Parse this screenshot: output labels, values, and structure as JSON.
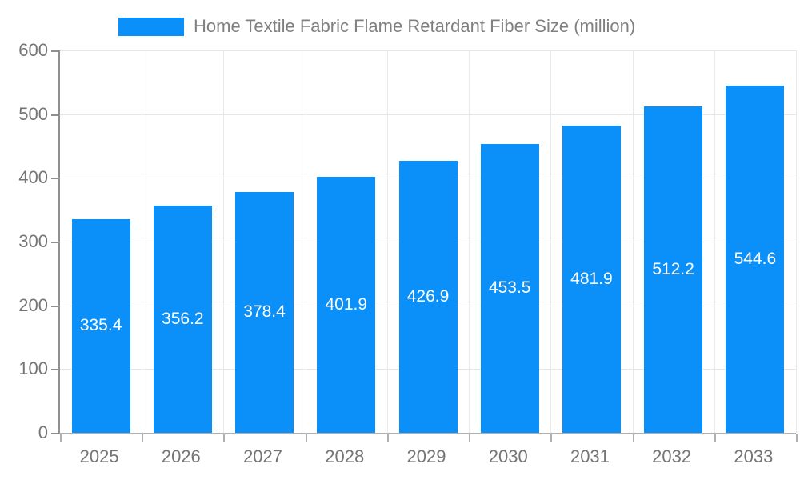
{
  "chart": {
    "legend": {
      "label": "Home Textile Fabric Flame Retardant Fiber Size (million)",
      "position": "top"
    },
    "colors": {
      "bar": "#0b90f9",
      "axis_text": "#757575",
      "legend_text": "#808080",
      "y_axis_line": "#8f8f8f",
      "x_axis_line": "#b0b0b0",
      "gridline": "#e6e6e6",
      "value_label": "#ffffff",
      "background": "#ffffff"
    }
  },
  "chart_data": {
    "type": "bar",
    "title": "Home Textile Fabric Flame Retardant Fiber Size (million)",
    "categories": [
      "2025",
      "2026",
      "2027",
      "2028",
      "2029",
      "2030",
      "2031",
      "2032",
      "2033"
    ],
    "values": [
      335.4,
      356.2,
      378.4,
      401.9,
      426.9,
      453.5,
      481.9,
      512.2,
      544.6
    ],
    "xlabel": "",
    "ylabel": "",
    "ylim": [
      0,
      600
    ],
    "yticks": [
      0,
      100,
      200,
      300,
      400,
      500,
      600
    ],
    "grid": true,
    "legend_position": "top",
    "value_label_position": "inside-center",
    "bar_color": "#0b90f9"
  }
}
